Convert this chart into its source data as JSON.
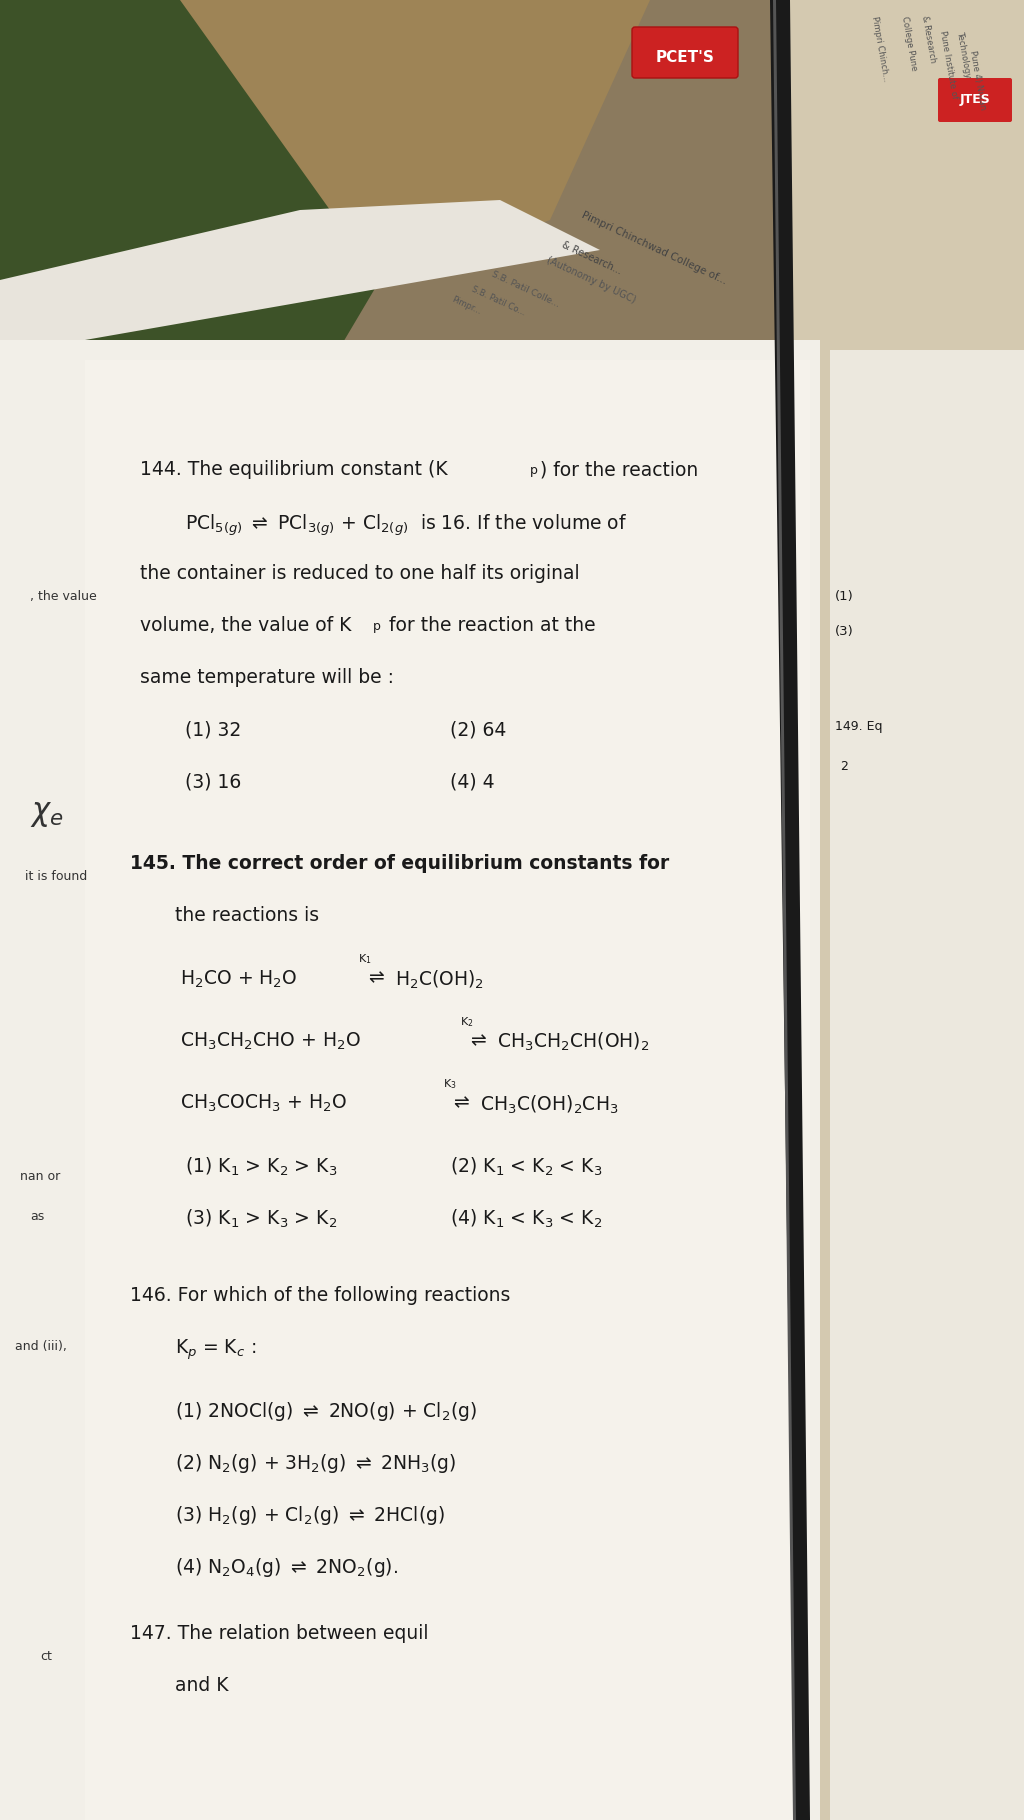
{
  "fig_width": 10.24,
  "fig_height": 18.2,
  "dpi": 100,
  "page_color": "#f0ede6",
  "bg_top_left_color": "#4a5a30",
  "bg_top_right_color": "#c8b89a",
  "bg_bottom_color": "#9a8060",
  "pen_color": "#222222",
  "text_color": "#1a1a1a",
  "margin_text_color": "#444444",
  "right_page_color": "#e8e0d0",
  "q144_line1": "144. The equilibrium constant (K",
  "q144_line1b": ") for the reaction",
  "q144_eq": "PCl$_{5(g)}$ $\\rightleftharpoons$ PCl$_{3(g)}$ + Cl$_{2(g)}$  is 16. If the volume of",
  "q144_line3": "the container is reduced to one half its original",
  "q144_line4a": "volume, the value of K",
  "q144_line4b": " for the reaction at the",
  "q144_line5": "same temperature will be :",
  "q144_o1": "(1) 32",
  "q144_o2": "(2) 64",
  "q144_o3": "(3) 16",
  "q144_o4": "(4) 4",
  "q145_line1": "145. The correct order of equilibrium constants for",
  "q145_line2": "the reactions is",
  "q145_r1a": "H$_2$CO + H$_2$O",
  "q145_r1b": "H$_2$C(OH)$_2$",
  "q145_r2a": "CH$_3$CH$_2$CHO + H$_2$O",
  "q145_r2b": "CH$_3$CH$_2$CH(OH)$_2$",
  "q145_r3a": "CH$_3$COCH$_3$ + H$_2$O",
  "q145_r3b": "CH$_3$C(OH)$_2$CH$_3$",
  "q145_o1": "(1) K$_1$ > K$_2$ > K$_3$",
  "q145_o2": "(2) K$_1$ < K$_2$ < K$_3$",
  "q145_o3": "(3) K$_1$ > K$_3$ > K$_2$",
  "q145_o4": "(4) K$_1$ < K$_3$ < K$_2$",
  "q146_line1": "146. For which of the following reactions",
  "q146_line2": "K$_p$ = K$_c$ :",
  "q146_o1": "(1) 2NOCl(g) $\\rightleftharpoons$ 2NO(g) + Cl$_2$(g)",
  "q146_o2": "(2) N$_2$(g) + 3H$_2$(g) $\\rightleftharpoons$ 2NH$_3$(g)",
  "q146_o3": "(3) H$_2$(g) + Cl$_2$(g) $\\rightleftharpoons$ 2HCl(g)",
  "q146_o4": "(4) N$_2$O$_4$(g) $\\rightleftharpoons$ 2NO$_2$(g).",
  "q147_line1": "147. The relation between equil",
  "q147_line2": "and K",
  "left_labels": [
    ", the value",
    "it is found",
    "nan or",
    "as",
    "and (iii),",
    "ct"
  ],
  "right_labels": [
    "(1)",
    "(3)",
    "149. Eq",
    "2"
  ]
}
